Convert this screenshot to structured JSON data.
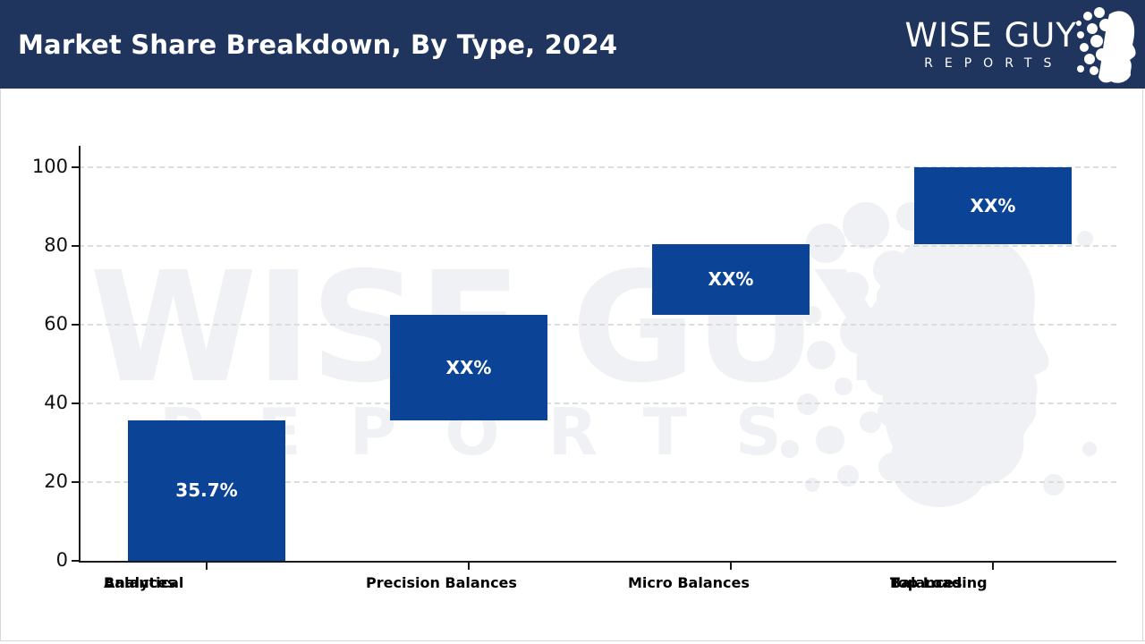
{
  "header": {
    "title": "Market Share Breakdown, By Type, 2024",
    "logo": {
      "line1": "WISE GUY",
      "line2": "REPORTS"
    }
  },
  "watermark": {
    "line1": "WISE GUY",
    "line2": "REPORTS"
  },
  "colors": {
    "header_bg": "#1f355e",
    "bar": "#0b4497",
    "bar_label": "#ffffff",
    "grid": "#dcdcdc",
    "axis": "#1a1a1a",
    "tick_text": "#111111",
    "watermark": "#f0f1f4"
  },
  "chart_data": {
    "type": "bar",
    "variant": "waterfall",
    "title": "Market Share Breakdown, By Type, 2024",
    "xlabel": "",
    "ylabel": "",
    "ylim": [
      0,
      100
    ],
    "yticks": [
      0,
      20,
      40,
      60,
      80,
      100
    ],
    "grid": "horizontal-dashed",
    "categories": [
      "Analytical Balances",
      "Precision Balances",
      "Micro Balances",
      "Top Loading Balances"
    ],
    "bars": [
      {
        "category": "Analytical Balances",
        "start": 0,
        "end": 35.7,
        "label": "35.7%"
      },
      {
        "category": "Precision Balances",
        "start": 35.7,
        "end": 62.5,
        "label": "XX%"
      },
      {
        "category": "Micro Balances",
        "start": 62.5,
        "end": 80.5,
        "label": "XX%"
      },
      {
        "category": "Top Loading Balances",
        "start": 80.5,
        "end": 100,
        "label": "XX%"
      }
    ]
  }
}
